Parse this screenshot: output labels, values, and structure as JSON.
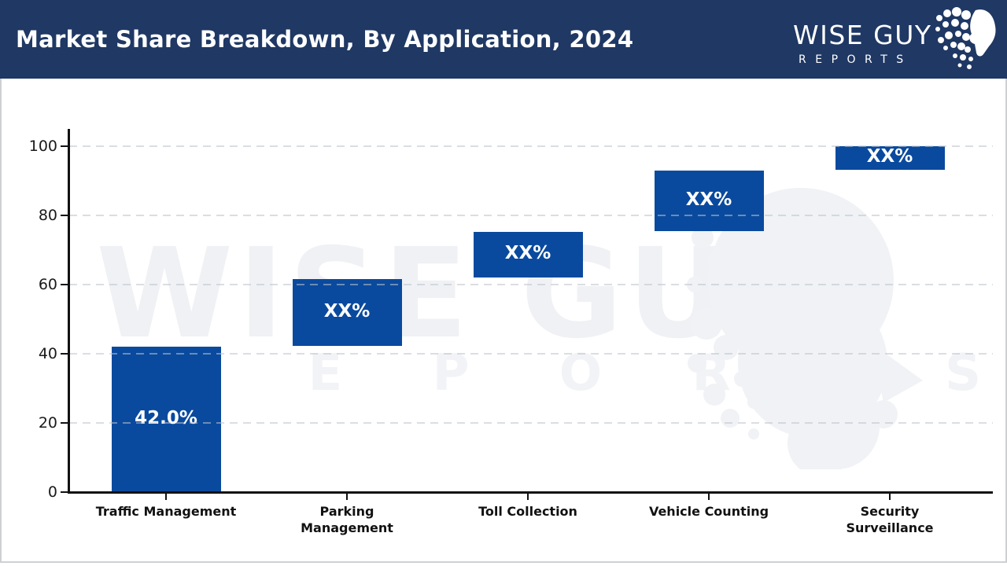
{
  "colors": {
    "header_navy": "#1f3864",
    "bar_blue": "#0a4a9e",
    "axis": "#111111",
    "watermark": "#f0f1f4"
  },
  "header": {
    "title": "Market Share Breakdown, By Application, 2024",
    "brand_line1": "WISE GUY",
    "brand_line2": "REPORTS"
  },
  "watermark": {
    "line1": "WISE GUY",
    "line2": "R E P O R T S"
  },
  "chart_data": {
    "type": "bar",
    "subtype": "floating-waterfall",
    "title": "Market Share Breakdown, By Application, 2024",
    "unit": "%",
    "categories": [
      "Traffic Management",
      "Parking Management",
      "Toll Collection",
      "Vehicle Counting",
      "Security\nSurveillance"
    ],
    "segments": [
      {
        "name": "Traffic Management",
        "start": 0,
        "end": 42.0,
        "label": "42.0%"
      },
      {
        "name": "Parking Management",
        "start": 42.2,
        "end": 61.6,
        "label": "XX%"
      },
      {
        "name": "Toll Collection",
        "start": 62.0,
        "end": 75.2,
        "label": "XX%"
      },
      {
        "name": "Vehicle Counting",
        "start": 75.4,
        "end": 93.0,
        "label": "XX%"
      },
      {
        "name": "Security Surveillance",
        "start": 93.2,
        "end": 100.0,
        "label": "XX%"
      }
    ],
    "y_ticks": [
      0,
      20,
      40,
      60,
      80,
      100
    ],
    "ylim": [
      0,
      105
    ],
    "xlabel": "",
    "ylabel": "",
    "grid": true,
    "grid_style": "dashed",
    "legend": false,
    "bar_color": "#0a4a9e",
    "bar_label_color": "#ffffff"
  }
}
